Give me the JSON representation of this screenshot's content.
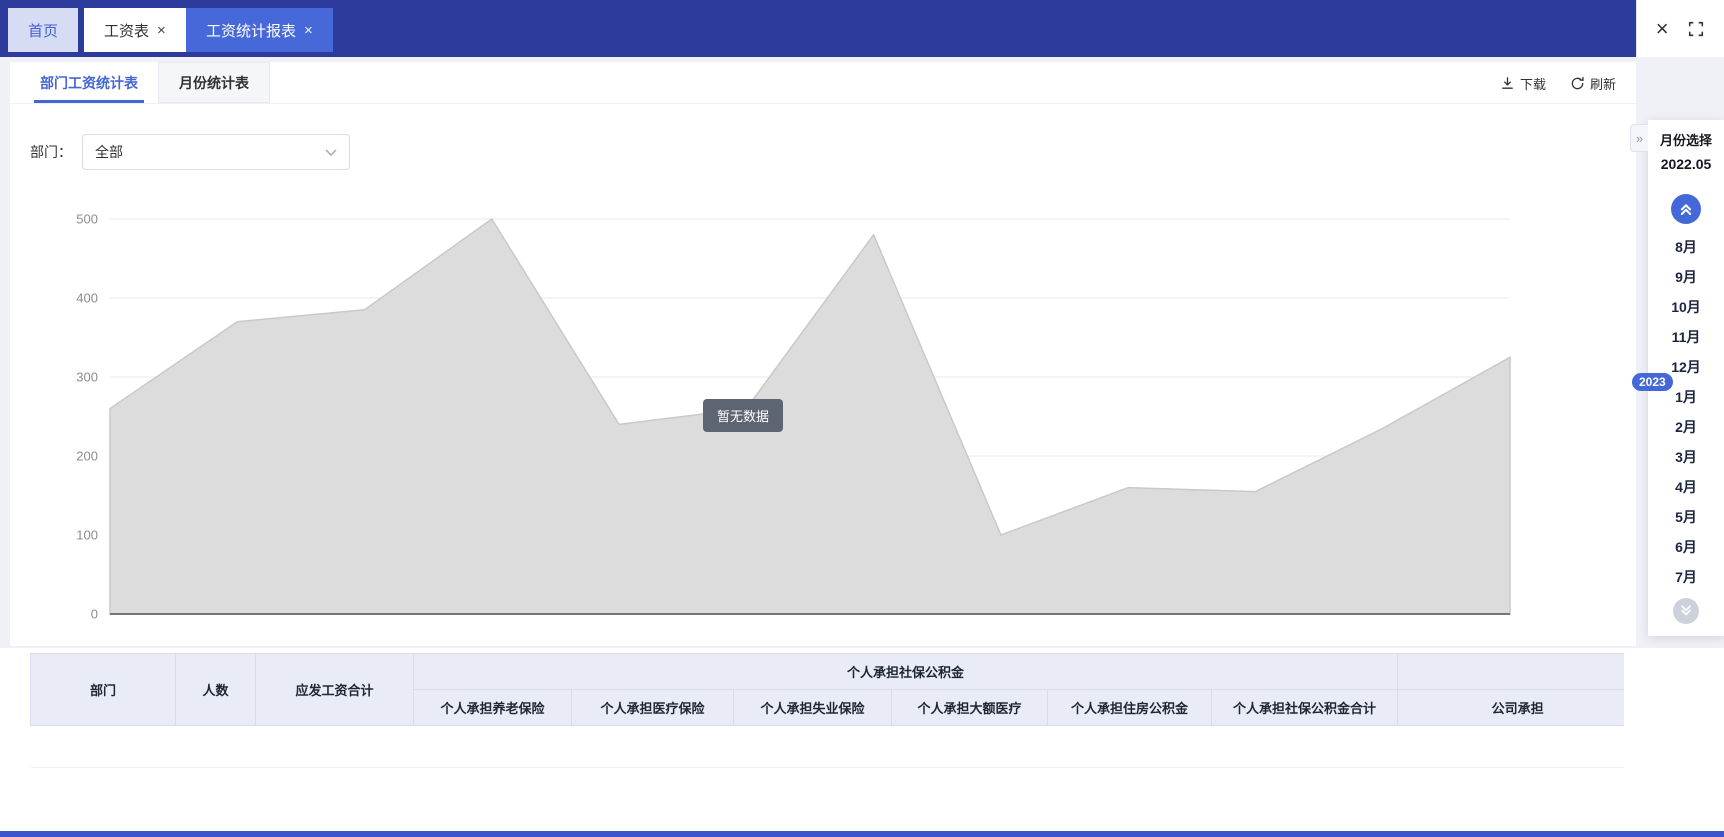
{
  "topbar": {
    "tabs": [
      {
        "label": "首页"
      },
      {
        "label": "工资表",
        "close": "×"
      },
      {
        "label": "工资统计报表",
        "close": "×"
      }
    ],
    "close_icon": "×"
  },
  "panel": {
    "tabs": [
      {
        "label": "部门工资统计表",
        "active": true
      },
      {
        "label": "月份统计表",
        "active": false
      }
    ],
    "download_label": "下载",
    "refresh_label": "刷新"
  },
  "filter": {
    "label": "部门：",
    "value": "全部"
  },
  "chart_data": {
    "type": "area",
    "title": "",
    "xlabel": "",
    "ylabel": "",
    "categories": [
      "",
      "",
      "",
      "",
      "",
      "",
      "",
      "",
      "",
      "",
      "",
      ""
    ],
    "values": [
      260,
      370,
      385,
      500,
      240,
      260,
      480,
      100,
      160,
      155,
      235,
      325
    ],
    "ylim": [
      0,
      500
    ],
    "yticks": [
      0,
      100,
      200,
      300,
      400,
      500
    ],
    "grid": true,
    "legend": "none",
    "area_fill": "#dcdcdc",
    "area_stroke": "#c9c9c9",
    "tooltip": "暂无数据"
  },
  "month_selector": {
    "collapse_icon": "»",
    "title": "月份选择",
    "current": "2022.05",
    "months": [
      "8月",
      "9月",
      "10月",
      "11月",
      "12月",
      "1月",
      "2月",
      "3月",
      "4月",
      "5月",
      "6月",
      "7月"
    ],
    "year_divider": {
      "after_index": 4,
      "label": "2023"
    },
    "accent": "#4468d8"
  },
  "table": {
    "headers_left": [
      "部门",
      "人数",
      "应发工资合计"
    ],
    "group_header": "个人承担社保公积金",
    "sub_headers": [
      "个人承担养老保险",
      "个人承担医疗保险",
      "个人承担失业保险",
      "个人承担大额医疗",
      "个人承担住房公积金",
      "个人承担社保公积金合计"
    ],
    "next_group_partial": "公司承担"
  },
  "colors": {
    "topbar_bg": "#2c3b9c",
    "active_tab_bg": "#4668d9",
    "accent_blue": "#4468d8",
    "header_bg": "#e9ecf7",
    "bottom_bar": "#3c55cc"
  }
}
